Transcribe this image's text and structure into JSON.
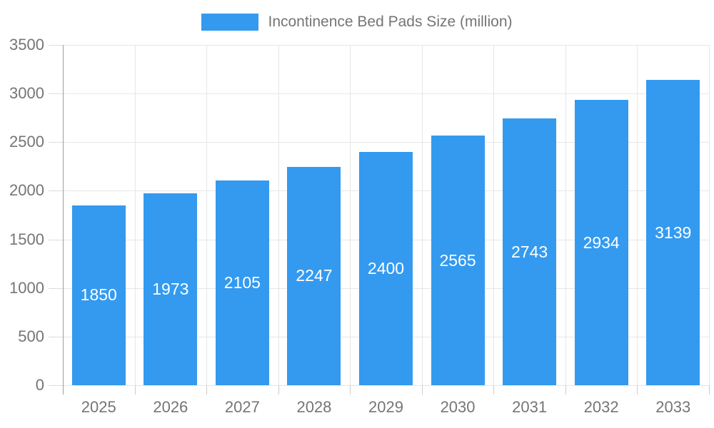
{
  "legend": {
    "label": "Incontinence Bed Pads Size (million)"
  },
  "chart_data": {
    "type": "bar",
    "title": "",
    "series_name": "Incontinence Bed Pads Size (million)",
    "categories": [
      "2025",
      "2026",
      "2027",
      "2028",
      "2029",
      "2030",
      "2031",
      "2032",
      "2033"
    ],
    "values": [
      1850,
      1973,
      2105,
      2247,
      2400,
      2565,
      2743,
      2934,
      3139
    ],
    "ylim": [
      0,
      3500
    ],
    "yticks": [
      0,
      500,
      1000,
      1500,
      2000,
      2500,
      3000,
      3500
    ],
    "grid": true,
    "legend_position": "top-center",
    "bar_color": "#339af0",
    "bar_label_color": "#ffffff",
    "axis_text_color": "#757575",
    "gridline_color": "#e6e6e6",
    "axis_line_color": "#9e9e9e"
  }
}
